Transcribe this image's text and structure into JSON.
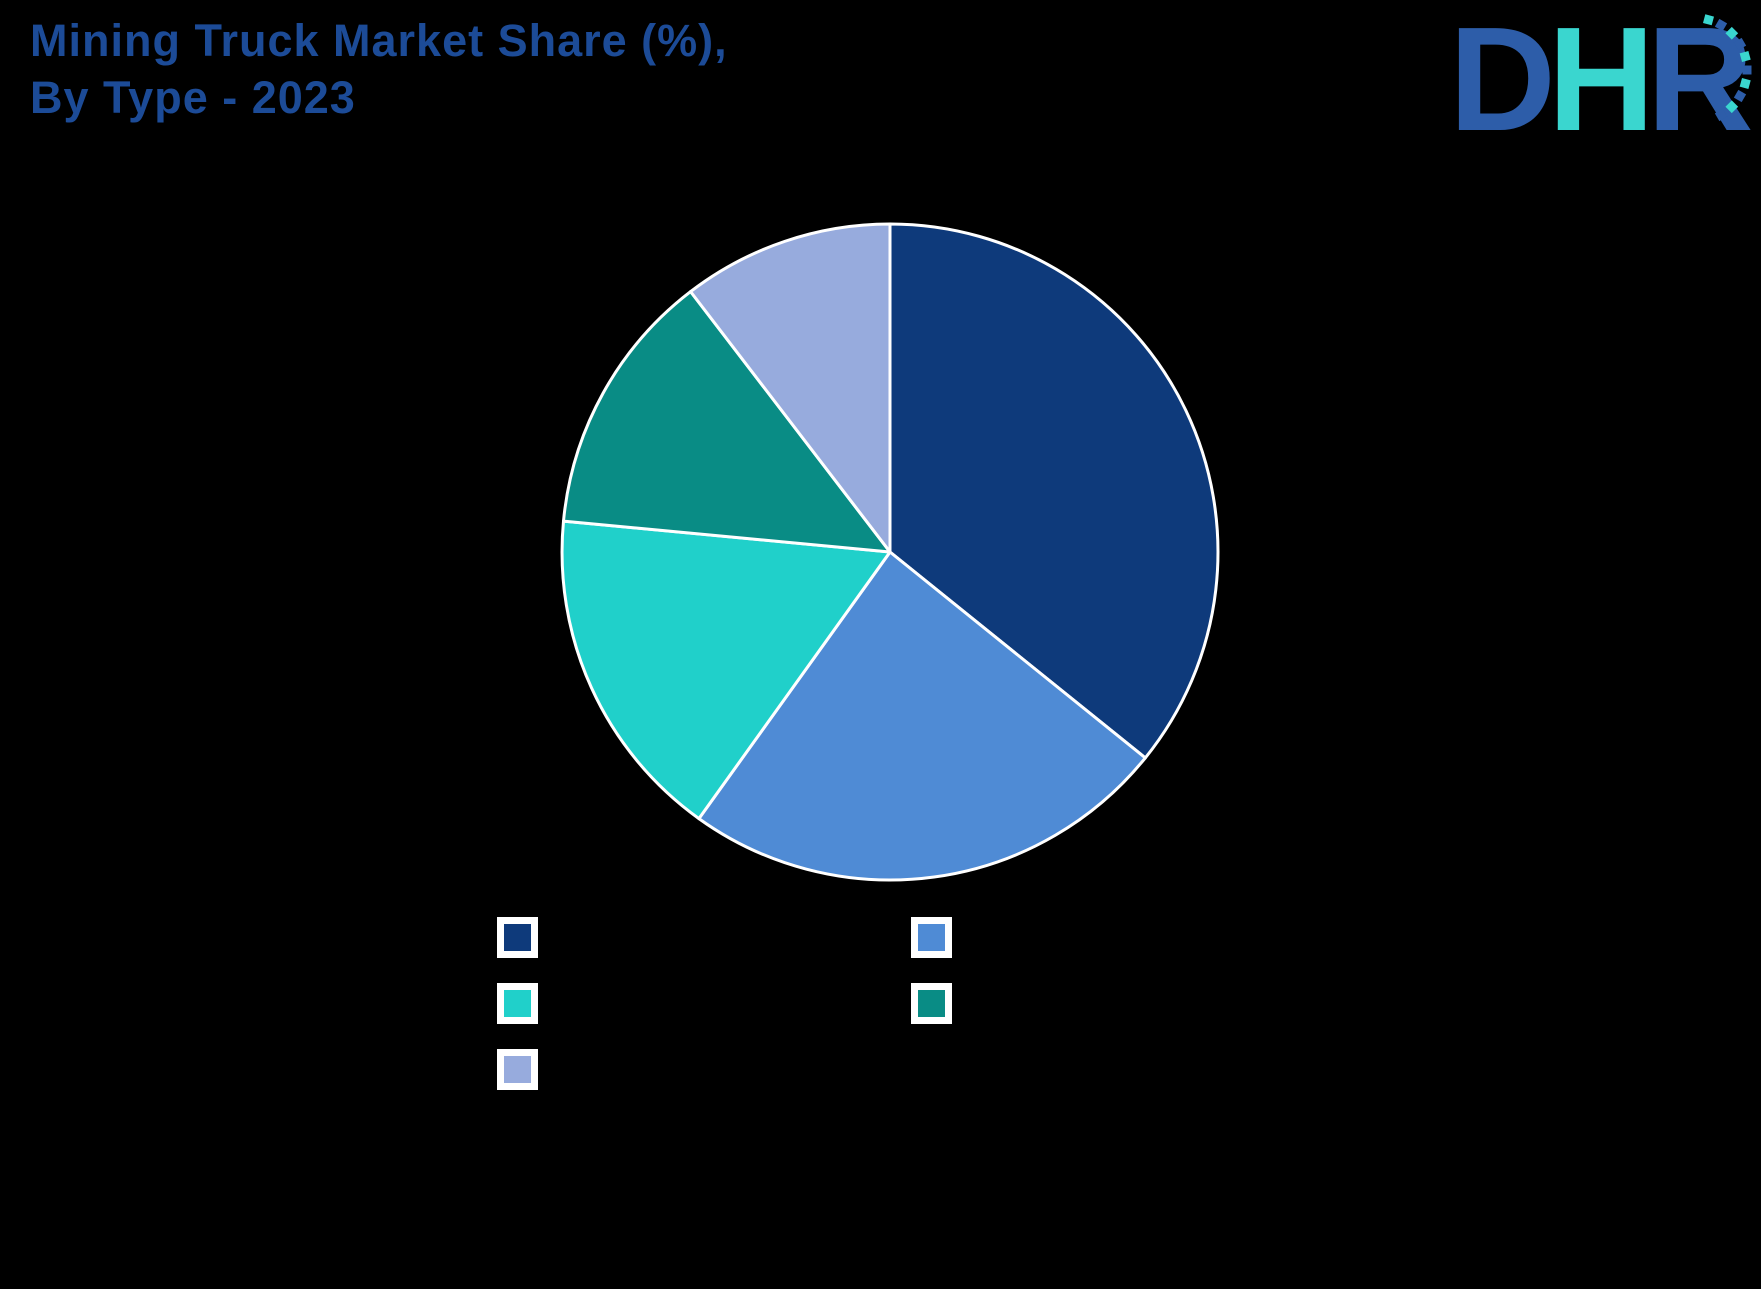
{
  "page": {
    "background_color": "#000000"
  },
  "header": {
    "title_line1": "Mining Truck Market Share (%),",
    "title_line2": "By Type - 2023",
    "title_color": "#1c4b97"
  },
  "logo": {
    "name": "DHR",
    "letters": [
      {
        "char": "D",
        "color": "#2d5da9"
      },
      {
        "char": "H",
        "color": "#3ad6cf"
      },
      {
        "char": "R",
        "color": "#2d5da9"
      }
    ],
    "orbit_dot_colors": [
      "#3ad6cf",
      "#2d5da9"
    ]
  },
  "chart_data": {
    "type": "pie",
    "title": "Mining Truck Market Share (%), By Type - 2023",
    "direction": "clockwise",
    "start_angle_deg": 0,
    "separator_color": "#ffffff",
    "legend_position": "bottom",
    "slices": [
      {
        "label": "",
        "value": 35.8,
        "color": "#0e3a7b"
      },
      {
        "label": "",
        "value": 24.1,
        "color": "#4f8bd5"
      },
      {
        "label": "",
        "value": 16.6,
        "color": "#20d0ca"
      },
      {
        "label": "",
        "value": 13.1,
        "color": "#098c85"
      },
      {
        "label": "",
        "value": 10.4,
        "color": "#97abdd"
      }
    ]
  },
  "legend": {
    "columns": 2,
    "swatch_border_color": "#ffffff",
    "items": [
      {
        "label": "",
        "color": "#0e3a7b"
      },
      {
        "label": "",
        "color": "#4f8bd5"
      },
      {
        "label": "",
        "color": "#20d0ca"
      },
      {
        "label": "",
        "color": "#098c85"
      },
      {
        "label": "",
        "color": "#97abdd"
      }
    ]
  }
}
